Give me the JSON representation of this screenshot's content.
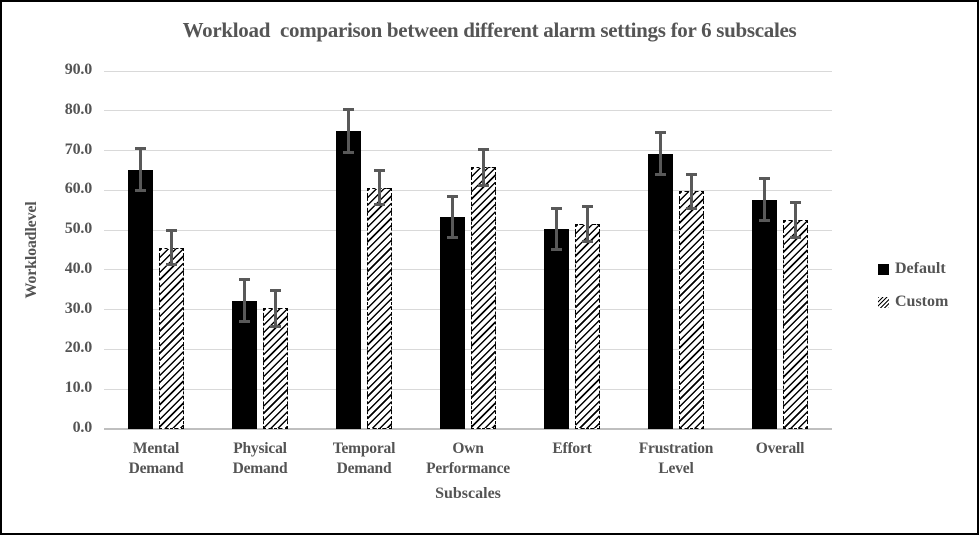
{
  "title": "Workload  comparison between different alarm settings for 6 subscales",
  "chart_data": {
    "type": "bar",
    "title": "Workload  comparison between different alarm settings for 6 subscales",
    "xlabel": "Subscales",
    "ylabel": "Workloadlevel",
    "ylim": [
      0,
      90
    ],
    "ytick_step": 10,
    "ytick_format_decimals": 1,
    "grid": true,
    "legend_position": "right-middle",
    "error_bars": true,
    "categories": [
      "Mental Demand",
      "Physical Demand",
      "Temporal Demand",
      "Own Performance",
      "Effort",
      "Frustration Level",
      "Overall"
    ],
    "series": [
      {
        "name": "Default",
        "fill": "solid-black",
        "values": [
          65.2,
          32.3,
          74.9,
          53.2,
          50.3,
          69.2,
          57.6
        ],
        "errors": [
          5.4,
          5.5,
          5.5,
          5.3,
          5.2,
          5.4,
          5.4
        ]
      },
      {
        "name": "Custom",
        "fill": "diagonal-hatch",
        "values": [
          45.6,
          30.3,
          60.6,
          65.8,
          51.6,
          59.8,
          52.5
        ],
        "errors": [
          4.4,
          4.6,
          4.4,
          4.6,
          4.5,
          4.4,
          4.5
        ]
      }
    ],
    "colors": {
      "bar_default": "#000000",
      "bar_custom_pattern": "#000000",
      "error_bar": "#595959",
      "gridline": "#d9d9d9",
      "axis_line": "#bfbfbf",
      "text": "#545454"
    }
  }
}
